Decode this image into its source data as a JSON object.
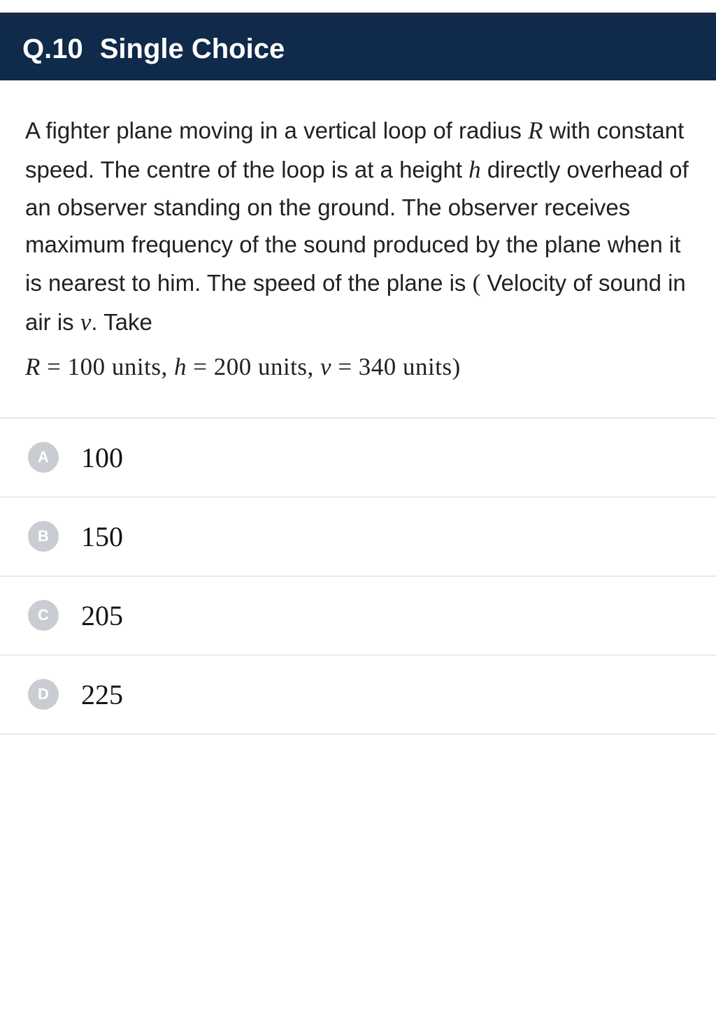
{
  "header": {
    "number": "Q.10",
    "type": "Single Choice",
    "bg_color": "#0f2a4a",
    "text_color": "#ffffff",
    "font_size_pt": 30
  },
  "question": {
    "text_parts": [
      "A fighter plane moving in a vertical loop of radius ",
      " with constant speed. The centre of the loop is at a height ",
      " directly overhead of an observer standing on the ground. The observer receives maximum frequency of the sound produced by the plane when it is nearest to him. The speed of the plane is ",
      " Velocity of sound in air is ",
      ". Take"
    ],
    "var_R": "R",
    "var_h": "h",
    "open_paren": "(",
    "var_v": "v",
    "math_line_html": "R = 100 units, h = 200 units, v = 340 units)",
    "font_size_pt": 25,
    "text_color": "#202124"
  },
  "options": [
    {
      "letter": "A",
      "value": "100"
    },
    {
      "letter": "B",
      "value": "150"
    },
    {
      "letter": "C",
      "value": "205"
    },
    {
      "letter": "D",
      "value": "225"
    }
  ],
  "styles": {
    "badge_bg": "#c9cdd2",
    "badge_fg": "#ffffff",
    "divider_color": "#e7e9ec",
    "option_font_size_pt": 30,
    "option_font_family": "Times New Roman",
    "background_color": "#ffffff"
  }
}
